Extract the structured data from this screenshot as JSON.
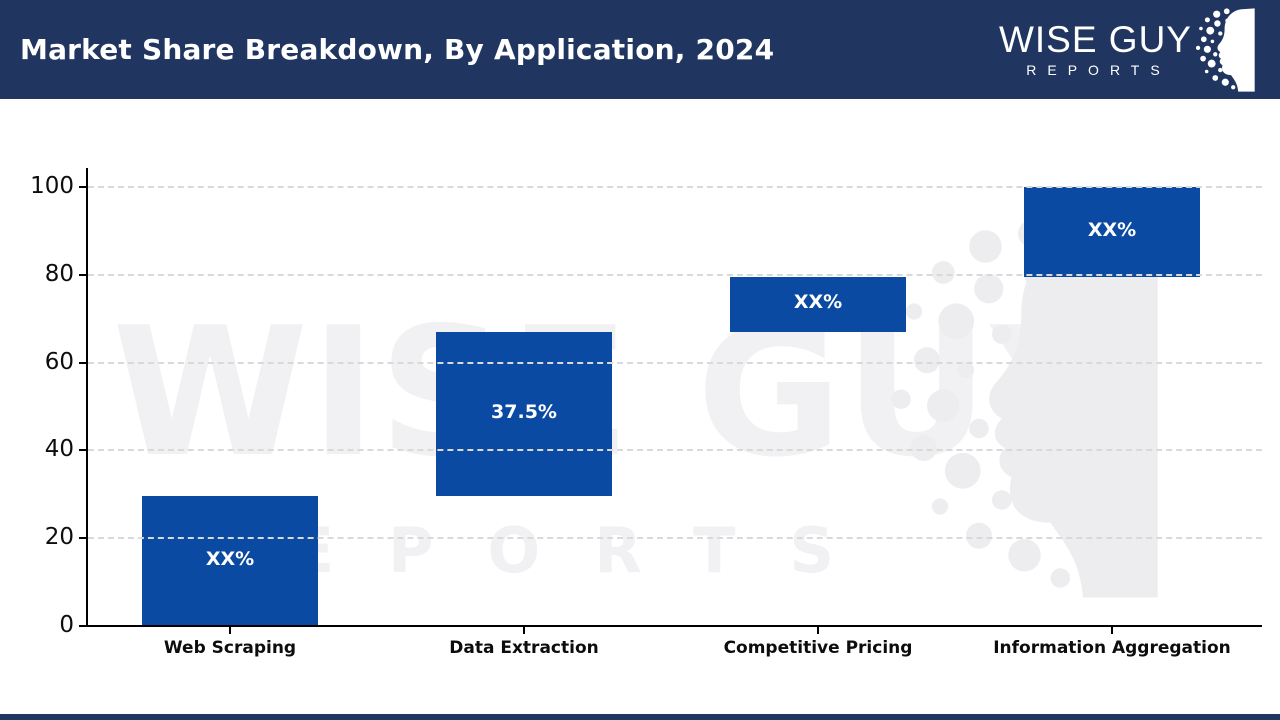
{
  "header": {
    "title": "Market Share Breakdown, By Application, 2024",
    "logo": {
      "line1": "WISE GUY",
      "line2": "REPORTS"
    }
  },
  "watermark": {
    "line1": "WISE GUY",
    "line2": "REPORTS"
  },
  "colors": {
    "header_bg": "#203560",
    "footer_bg": "#203560",
    "bar": "#0b4aa2",
    "grid": "#d9d9d9",
    "axis": "#000000",
    "bar_label": "#ffffff",
    "watermark": "#f1f1f3",
    "watermark_face": "#ededf0"
  },
  "chart_data": {
    "type": "bar",
    "subtype": "floating-waterfall",
    "title": "Market Share Breakdown, By Application, 2024",
    "categories": [
      "Web Scraping",
      "Data Extraction",
      "Competitive Pricing",
      "Information Aggregation"
    ],
    "bars": [
      {
        "category": "Web Scraping",
        "start": 0,
        "end": 29.5,
        "value": 29.5,
        "label": "XX%"
      },
      {
        "category": "Data Extraction",
        "start": 29.5,
        "end": 67,
        "value": 37.5,
        "label": "37.5%"
      },
      {
        "category": "Competitive Pricing",
        "start": 67,
        "end": 79.5,
        "value": 12.5,
        "label": "XX%"
      },
      {
        "category": "Information Aggregation",
        "start": 79.5,
        "end": 100,
        "value": 20.5,
        "label": "XX%"
      }
    ],
    "yticks": [
      0,
      20,
      40,
      60,
      80,
      100
    ],
    "ylim": [
      0,
      104
    ],
    "xlabel": "",
    "ylabel": "",
    "grid": "horizontal-dashed",
    "legend": null
  }
}
